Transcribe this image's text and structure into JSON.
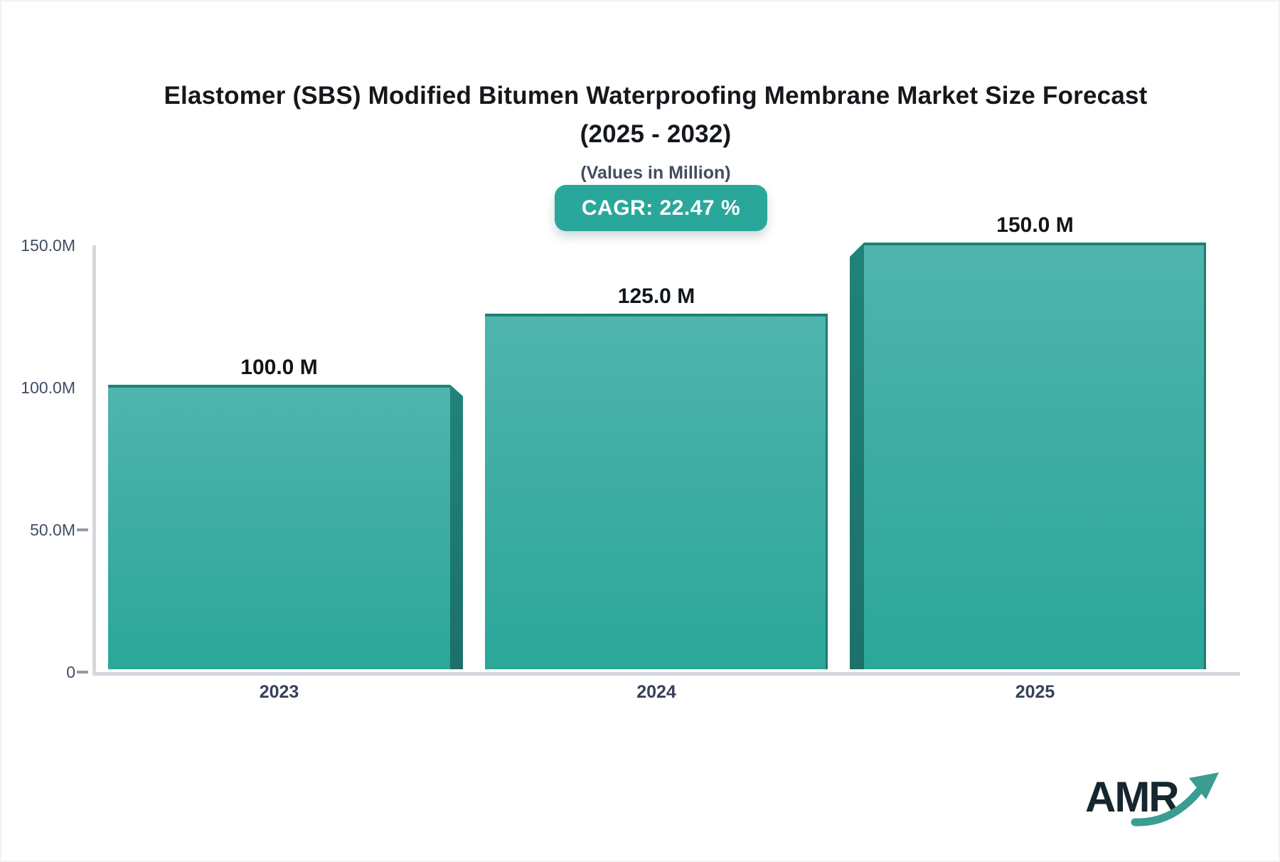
{
  "header": {
    "title_line1": "Elastomer (SBS) Modified Bitumen Waterproofing Membrane Market Size Forecast",
    "title_line2": "(2025 - 2032)",
    "subtitle": "(Values in Million)",
    "cagr_badge": "CAGR: 22.47 %"
  },
  "chart_data": {
    "type": "bar",
    "title": "Elastomer (SBS) Modified Bitumen Waterproofing Membrane Market Size Forecast (2025 - 2032)",
    "subtitle": "(Values in Million)",
    "unit": "Million",
    "cagr_percent": 22.47,
    "categories": [
      "2023",
      "2024",
      "2025"
    ],
    "values": [
      100,
      125,
      150
    ],
    "bar_labels": [
      "100.0 M",
      "125.0 M",
      "150.0 M"
    ],
    "y_ticks": [
      "150.0M",
      "100.0M",
      "50.0M",
      "0"
    ],
    "ylim": [
      0,
      150
    ],
    "xlabel": "",
    "ylabel": "",
    "grid": "off",
    "legend": "none"
  },
  "logo": {
    "text": "AMR"
  },
  "colors": {
    "bar_face_top": "#4fb5ad",
    "bar_face_bottom": "#2ba79a",
    "bar_side": "#1e7c72",
    "bar_top_edge": "#1f8176",
    "badge_bg": "#2aa79b",
    "axis_line": "#d5d7dd",
    "title_text": "#14181d",
    "axis_label_text": "#414d63",
    "logo_arrow": "#3b9c92"
  }
}
